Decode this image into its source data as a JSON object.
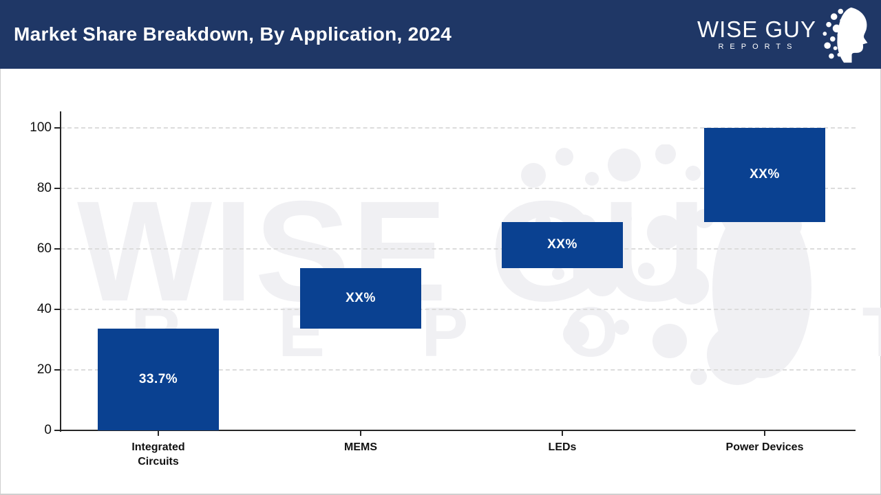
{
  "header": {
    "title": "Market Share Breakdown, By Application, 2024",
    "logo": {
      "line1": "WISE GUY",
      "line2": "REPORTS"
    }
  },
  "watermark": {
    "line1": "WISE GUY",
    "line2": "R E P O R T S"
  },
  "chart_data": {
    "type": "bar",
    "style": "waterfall",
    "title": "Market Share Breakdown, By Application, 2024",
    "categories": [
      "Integrated\nCircuits",
      "MEMS",
      "LEDs",
      "Power Devices"
    ],
    "segments": [
      {
        "category": "Integrated Circuits",
        "start": 0,
        "end": 33.7,
        "label": "33.7%"
      },
      {
        "category": "MEMS",
        "start": 33.7,
        "end": 53.7,
        "label": "XX%"
      },
      {
        "category": "LEDs",
        "start": 53.7,
        "end": 68.9,
        "label": "XX%"
      },
      {
        "category": "Power Devices",
        "start": 68.9,
        "end": 100,
        "label": "XX%"
      }
    ],
    "xlabel": "",
    "ylabel": "",
    "ylim": [
      0,
      100
    ],
    "yticks": [
      0,
      20,
      40,
      60,
      80,
      100
    ],
    "grid": "dashed-horizontal",
    "legend": "none",
    "bar_color": "#0a4191",
    "value_label_color": "#ffffff"
  },
  "colors": {
    "header_bg": "#1f3766",
    "bar": "#0a4191",
    "axis": "#262626",
    "grid": "#dcdcdc",
    "watermark": "#f0f0f3",
    "page_border": "#cfcfcf"
  }
}
